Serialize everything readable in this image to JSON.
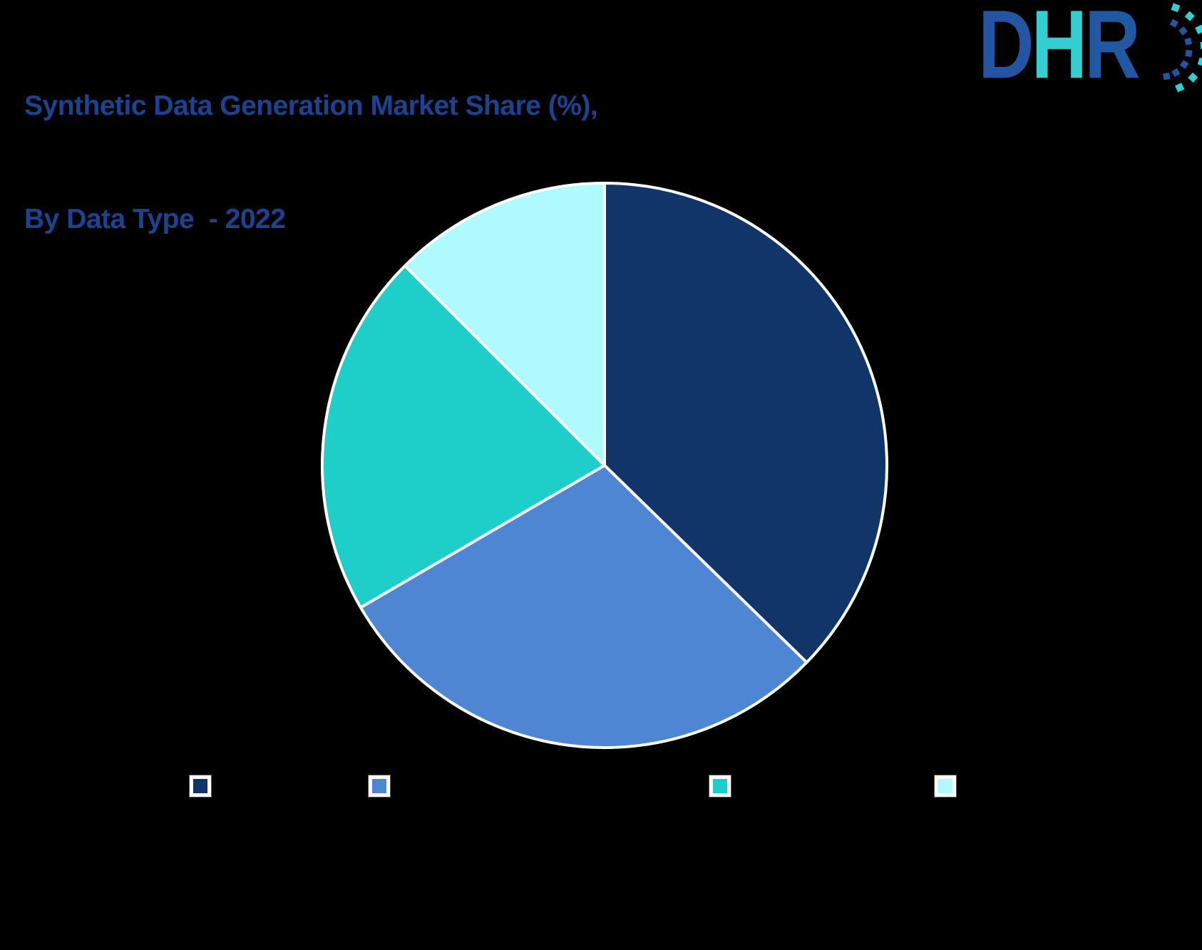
{
  "header": {
    "title_line1": "Synthetic Data Generation Market Share (%),",
    "title_line2": "By Data Type  - 2022"
  },
  "logo": {
    "letters": [
      "D",
      "H",
      "R"
    ],
    "letter_colors": [
      "#2355a3",
      "#34cdd1",
      "#2158a4"
    ],
    "dot_colors": {
      "blue": "#2355a3",
      "teal": "#34cdd1"
    }
  },
  "colors": {
    "background": "#000000",
    "title": "#1b4390",
    "slice_border": "#ffffff"
  },
  "chart_data": {
    "type": "pie",
    "title": "Synthetic Data Generation Market Share (%), By Data Type - 2022",
    "start_angle_deg": 0,
    "direction": "clockwise",
    "legend_position": "bottom",
    "labels_visible": false,
    "slices": [
      {
        "label": "",
        "value": 37.3,
        "color": "#113569"
      },
      {
        "label": "",
        "value": 29.3,
        "color": "#4f86d3"
      },
      {
        "label": "",
        "value": 20.9,
        "color": "#1ecfc9"
      },
      {
        "label": "",
        "value": 12.5,
        "color": "#aefaff"
      }
    ]
  }
}
